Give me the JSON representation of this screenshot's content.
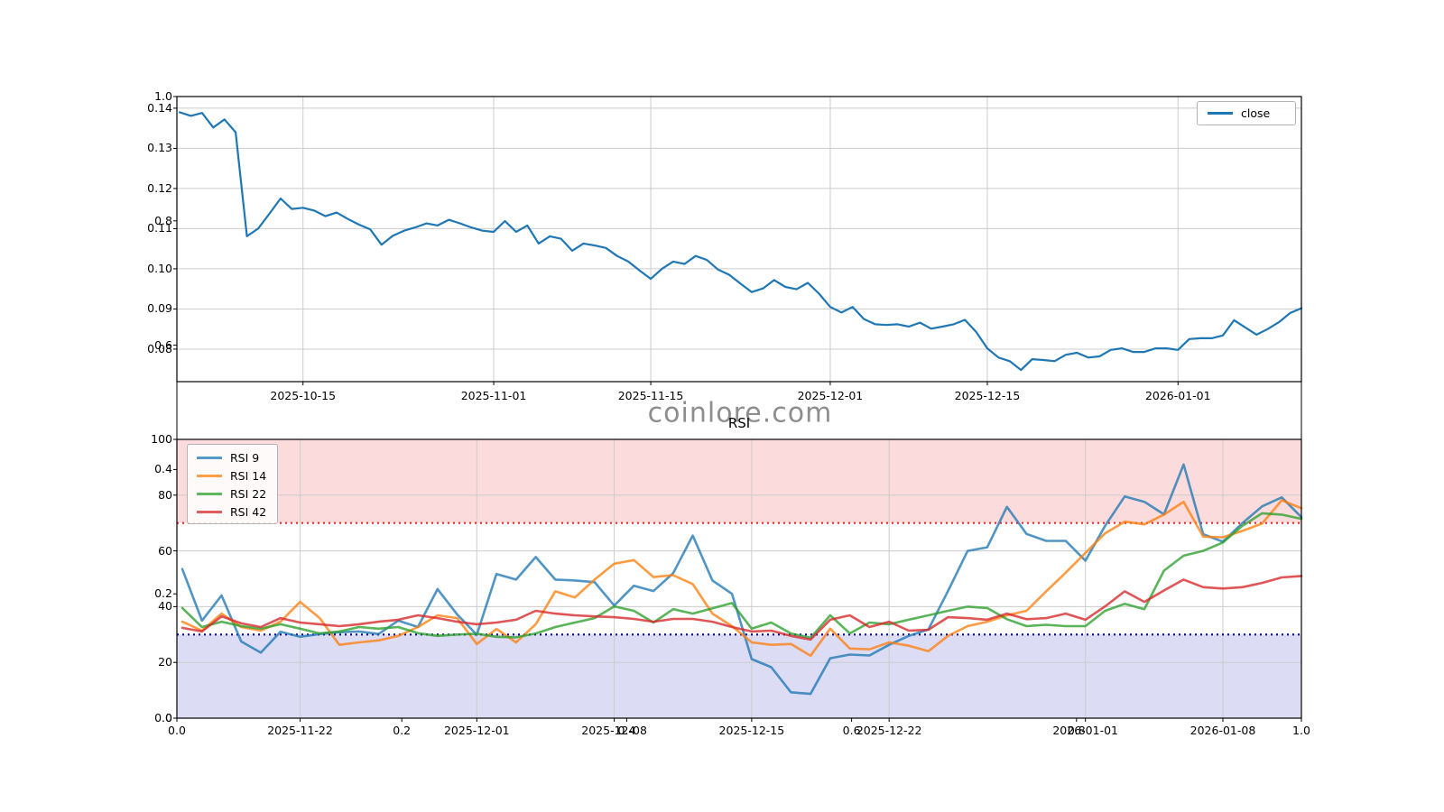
{
  "watermark": "coinlore.com",
  "overlay_axis": {
    "x_tick_labels": [
      "0.0",
      "0.2",
      "0.4",
      "0.6",
      "0.8",
      "1.0"
    ],
    "y_tick_labels": [
      "1.0",
      "0.8",
      "0.6",
      "0.4",
      "0.2",
      "0.0"
    ]
  },
  "chart_data": [
    {
      "type": "line",
      "name": "price",
      "title": "",
      "x_start_date": "2025-10-04",
      "x_freq": "daily",
      "x_tick_labels": [
        {
          "label": "2025-10-15",
          "index": 11
        },
        {
          "label": "2025-11-01",
          "index": 28
        },
        {
          "label": "2025-11-15",
          "index": 42
        },
        {
          "label": "2025-12-01",
          "index": 58
        },
        {
          "label": "2025-12-15",
          "index": 72
        },
        {
          "label": "2026-01-01",
          "index": 89
        }
      ],
      "y_ticks": [
        0.08,
        0.09,
        0.1,
        0.11,
        0.12,
        0.13,
        0.14
      ],
      "y_tick_labels": [
        "0.08",
        "0.09",
        "0.10",
        "0.11",
        "0.12",
        "0.13",
        "0.14"
      ],
      "ylim": [
        0.0719,
        0.1429
      ],
      "grid": true,
      "legend_position": "upper right",
      "series": [
        {
          "name": "close",
          "color": "#1f77b4",
          "values": [
            0.139,
            0.1381,
            0.1388,
            0.1352,
            0.1372,
            0.134,
            0.1081,
            0.11,
            0.1137,
            0.1175,
            0.1149,
            0.1152,
            0.1145,
            0.1131,
            0.114,
            0.1124,
            0.111,
            0.1098,
            0.106,
            0.1082,
            0.1095,
            0.1103,
            0.1113,
            0.1108,
            0.1122,
            0.1113,
            0.1103,
            0.1095,
            0.1092,
            0.1119,
            0.1092,
            0.1108,
            0.1063,
            0.1081,
            0.1075,
            0.1045,
            0.1063,
            0.1058,
            0.1052,
            0.1032,
            0.1018,
            0.0996,
            0.0975,
            0.1,
            0.1018,
            0.1012,
            0.1032,
            0.1022,
            0.0998,
            0.0985,
            0.0963,
            0.0942,
            0.0951,
            0.0972,
            0.0955,
            0.0949,
            0.0965,
            0.0938,
            0.0905,
            0.0891,
            0.0905,
            0.0875,
            0.0862,
            0.086,
            0.0862,
            0.0856,
            0.0866,
            0.0851,
            0.0856,
            0.0862,
            0.0873,
            0.0843,
            0.0802,
            0.0779,
            0.077,
            0.0748,
            0.0775,
            0.0773,
            0.077,
            0.0786,
            0.0791,
            0.0779,
            0.0782,
            0.0798,
            0.0802,
            0.0793,
            0.0793,
            0.0802,
            0.0802,
            0.0798,
            0.0825,
            0.0827,
            0.0827,
            0.0834,
            0.0872,
            0.0854,
            0.0836,
            0.085,
            0.0867,
            0.089,
            0.0902
          ]
        }
      ]
    },
    {
      "type": "line",
      "name": "rsi",
      "title": "RSI",
      "x_start_date": "2025-11-16",
      "x_freq": "daily",
      "x_tick_labels": [
        {
          "label": "2025-11-22",
          "index": 6
        },
        {
          "label": "2025-12-01",
          "index": 15
        },
        {
          "label": "2025-12-08",
          "index": 22
        },
        {
          "label": "2025-12-15",
          "index": 29
        },
        {
          "label": "2025-12-22",
          "index": 36
        },
        {
          "label": "2026-01-01",
          "index": 46
        },
        {
          "label": "2026-01-08",
          "index": 53
        }
      ],
      "y_ticks": [
        0,
        20,
        40,
        60,
        80,
        100
      ],
      "y_tick_labels": [
        "0",
        "20",
        "40",
        "60",
        "80",
        "100"
      ],
      "ylim": [
        0,
        100
      ],
      "grid": true,
      "bands": [
        {
          "name": "overbought-zone",
          "from": 70,
          "to": 100,
          "color": "#fbdbdb"
        },
        {
          "name": "oversold-zone",
          "from": 0,
          "to": 30,
          "color": "#dcdcf4"
        }
      ],
      "threshold_lines": [
        {
          "value": 70,
          "color": "#e02b2b",
          "style": "dotted"
        },
        {
          "value": 30,
          "color": "#00008b",
          "style": "dotted"
        }
      ],
      "legend_position": "upper left",
      "series": [
        {
          "name": "RSI 9",
          "color": "#1f77b4",
          "values": [
            53.5,
            35,
            44,
            27.5,
            23.5,
            31,
            29.2,
            30.2,
            30.8,
            31.1,
            30.2,
            35,
            32.7,
            46.3,
            37.2,
            29.9,
            51.7,
            49.7,
            57.8,
            49.7,
            49.4,
            48.8,
            40.4,
            47.5,
            45.6,
            52,
            65.5,
            49.4,
            44.6,
            21.2,
            18.3,
            9.3,
            8.7,
            21.5,
            22.8,
            22.5,
            26.3,
            29.5,
            31.8,
            45.6,
            60,
            61.3,
            75.8,
            66.1,
            63.6,
            63.6,
            56.5,
            69,
            79.5,
            77.6,
            73.1,
            91,
            66,
            63.3,
            70,
            76,
            79.2,
            72.1
          ]
        },
        {
          "name": "RSI 14",
          "color": "#ff7f0e",
          "values": [
            34.6,
            31.4,
            37.5,
            32.7,
            31.4,
            34.6,
            41.7,
            35.9,
            26.3,
            27.2,
            27.9,
            29.5,
            32.7,
            36.9,
            35.9,
            26.6,
            32,
            27.2,
            33.7,
            45.5,
            43.3,
            49.7,
            55.4,
            56.7,
            50.6,
            51.3,
            48.1,
            37.5,
            33,
            27.2,
            26.3,
            26.6,
            22.4,
            32.1,
            25,
            24.7,
            27.2,
            26,
            24,
            29.5,
            33,
            34.6,
            36.9,
            38.5,
            45.5,
            52.2,
            59.3,
            66.3,
            70.5,
            69.5,
            73,
            77.6,
            65.1,
            64.9,
            67.2,
            69.8,
            78.2,
            75.3
          ]
        },
        {
          "name": "RSI 22",
          "color": "#2ca02c",
          "values": [
            39.5,
            32.7,
            34.6,
            33,
            32.1,
            33.7,
            32.1,
            30.4,
            31.1,
            32.7,
            32.1,
            32.7,
            30.5,
            29.5,
            30,
            30.3,
            29.2,
            29,
            30.4,
            32.7,
            34.3,
            35.9,
            40.1,
            38.5,
            34.3,
            39.1,
            37.5,
            39.4,
            41.3,
            32.1,
            34.3,
            30.4,
            28.8,
            36.9,
            30.4,
            34.3,
            33.7,
            35.3,
            36.9,
            38.5,
            40,
            39.5,
            35.5,
            33,
            33.5,
            33,
            33,
            38.5,
            41,
            39.1,
            52.9,
            58.3,
            60,
            63,
            69,
            73.5,
            73,
            71.5
          ]
        },
        {
          "name": "RSI 42",
          "color": "#d62728",
          "values": [
            32.4,
            31.1,
            36.5,
            34,
            32.7,
            35.9,
            34.3,
            33.7,
            33,
            33.7,
            34.6,
            35.3,
            36.9,
            35.9,
            34.6,
            33.7,
            34.3,
            35.3,
            38.5,
            37.5,
            36.9,
            36.5,
            36.2,
            35.6,
            34.6,
            35.6,
            35.6,
            34.6,
            32.7,
            31.1,
            31.4,
            29.5,
            28.2,
            35.3,
            36.9,
            32.7,
            34.6,
            31.4,
            31.7,
            36.2,
            35.9,
            35.3,
            37.5,
            35.5,
            35.9,
            37.5,
            35.3,
            40.1,
            45.5,
            41.7,
            45.8,
            49.7,
            47,
            46.5,
            47,
            48.5,
            50.5,
            51
          ]
        }
      ]
    }
  ]
}
